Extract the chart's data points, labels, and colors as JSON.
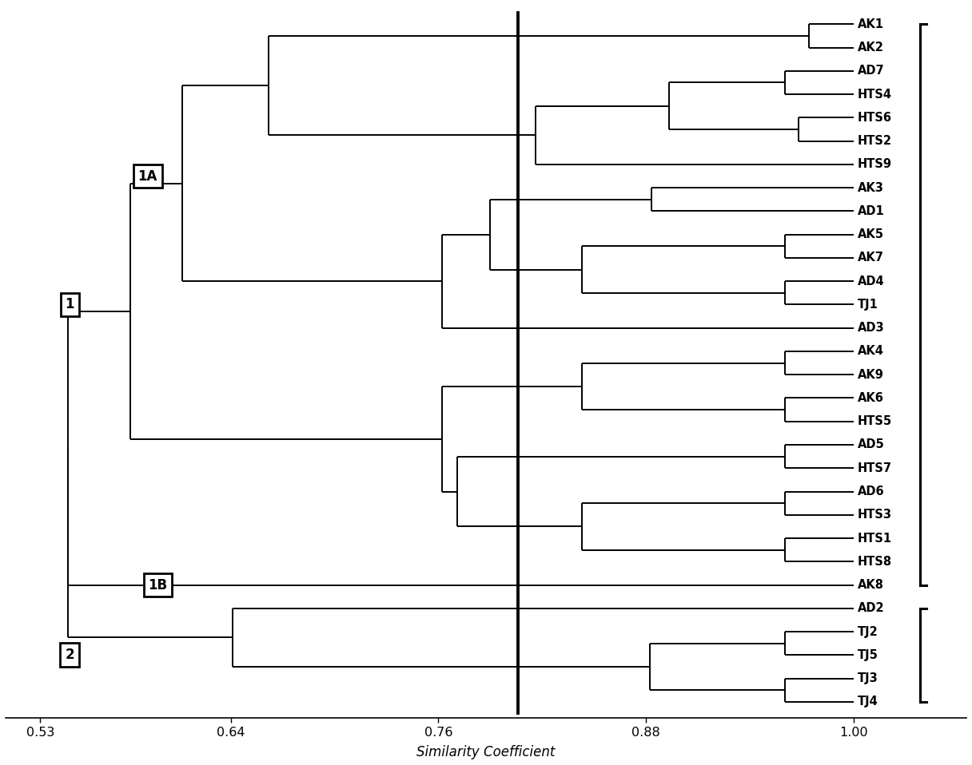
{
  "labels": [
    "AK1",
    "AK2",
    "AD7",
    "HTS4",
    "HTS6",
    "HTS2",
    "HTS9",
    "AK3",
    "AD1",
    "AK5",
    "AK7",
    "AD4",
    "TJ1",
    "AD3",
    "AK4",
    "AK9",
    "AK6",
    "HTS5",
    "AD5",
    "HTS7",
    "AD6",
    "HTS3",
    "HTS1",
    "HTS8",
    "AK8",
    "AD2",
    "TJ2",
    "TJ5",
    "TJ3",
    "TJ4"
  ],
  "xmin": 0.53,
  "xmax": 1.0,
  "xticks": [
    0.53,
    0.64,
    0.76,
    0.88,
    1.0
  ],
  "xtick_labels": [
    "0.53",
    "0.64",
    "0.76",
    "0.88",
    "1.00"
  ],
  "xlabel": "Similarity Coefficient",
  "cutoff_line": 0.806,
  "background": "#ffffff",
  "line_color": "#000000"
}
